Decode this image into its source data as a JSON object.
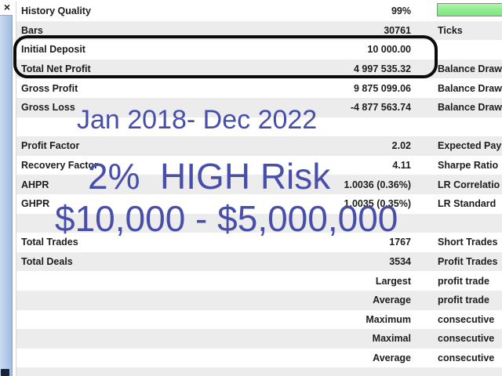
{
  "window": {
    "close_label": "×"
  },
  "colors": {
    "row_alt": "#ececec",
    "quality_bar_fill": "#90ee90",
    "rail_blue": "#b3cbe9",
    "overlay_text": "#474fab",
    "highlight_stroke": "#0b0b0b"
  },
  "overlays": {
    "period": "Jan 2018- Dec 2022",
    "risk": "2%  HIGH Risk",
    "range": "$10,000 - $5,000,000"
  },
  "report": {
    "quality_bar_icon": "progress-bar",
    "rows": [
      {
        "label": "History Quality",
        "value": "99%",
        "right": "",
        "bar": true
      },
      {
        "label": "Bars",
        "value": "30761",
        "right": "Ticks"
      },
      {
        "label": "Initial Deposit",
        "value": "10 000.00",
        "right": ""
      },
      {
        "label": "Total Net Profit",
        "value": "4 997 535.32",
        "right": "Balance Draw"
      },
      {
        "label": "Gross Profit",
        "value": "9 875 099.06",
        "right": "Balance Draw"
      },
      {
        "label": "Gross Loss",
        "value": "-4 877 563.74",
        "right": "Balance Draw"
      },
      {
        "label": "",
        "value": "",
        "right": ""
      },
      {
        "label": "Profit Factor",
        "value": "2.02",
        "right": "Expected Pay"
      },
      {
        "label": "Recovery Factor",
        "value": "4.11",
        "right": "Sharpe Ratio"
      },
      {
        "label": "AHPR",
        "value": "1.0036 (0.36%)",
        "right": "LR Correlatio"
      },
      {
        "label": "GHPR",
        "value": "1.0035 (0.35%)",
        "right": "LR Standard"
      },
      {
        "label": "",
        "value": "",
        "right": ""
      },
      {
        "label": "Total Trades",
        "value": "1767",
        "right": "Short Trades"
      },
      {
        "label": "Total Deals",
        "value": "3534",
        "right": "Profit Trades"
      },
      {
        "label": "",
        "value": "Largest",
        "right": "profit trade"
      },
      {
        "label": "",
        "value": "Average",
        "right": "profit trade"
      },
      {
        "label": "",
        "value": "Maximum",
        "right": "consecutive"
      },
      {
        "label": "",
        "value": "Maximal",
        "right": "consecutive"
      },
      {
        "label": "",
        "value": "Average",
        "right": "consecutive"
      },
      {
        "label": "",
        "value": "",
        "right": ""
      }
    ]
  }
}
